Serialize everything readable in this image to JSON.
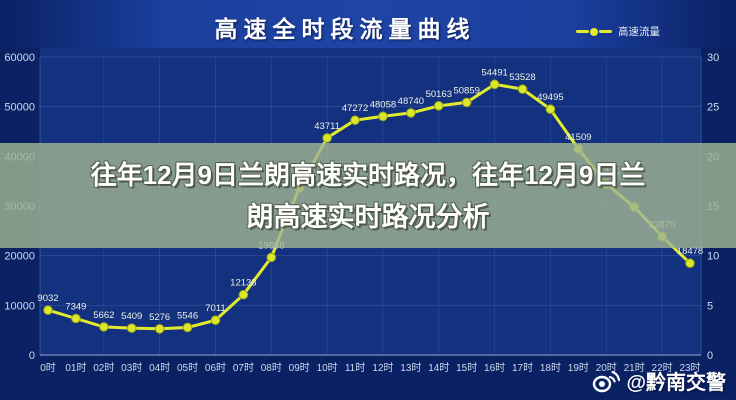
{
  "header": {
    "title": "高速全时段流量曲线"
  },
  "legend": {
    "label": "高速流量",
    "marker_color": "#e2eb2d"
  },
  "overlay": {
    "line1": "往年12月9日兰朗高速实时路况，往年12月9日兰",
    "line2": "朗高速实时路况分析"
  },
  "watermark": {
    "handle": "@黔南交警",
    "icon": "weibo-icon"
  },
  "chart_data": {
    "type": "line",
    "title": "高速全时段流量曲线",
    "legend_entries": [
      "高速流量"
    ],
    "legend_position": "top-right",
    "grid": true,
    "categories": [
      "0时",
      "01时",
      "02时",
      "03时",
      "04时",
      "05时",
      "06时",
      "07时",
      "08时",
      "09时",
      "10时",
      "11时",
      "12时",
      "13时",
      "14时",
      "15时",
      "16时",
      "17时",
      "18时",
      "19时",
      "20时",
      "21时",
      "22时",
      "23时"
    ],
    "series": [
      {
        "name": "高速流量",
        "values": [
          9032,
          7349,
          5662,
          5409,
          5276,
          5546,
          7011,
          12138,
          19658,
          33600,
          43711,
          47272,
          48058,
          48740,
          50163,
          50859,
          54491,
          53528,
          49495,
          41509,
          34445,
          29800,
          23870,
          18478
        ]
      }
    ],
    "point_labels": [
      "9032",
      "7349",
      "5662",
      "5409",
      "5276",
      "5546",
      "7011",
      "12138",
      "19658",
      "",
      "43711",
      "47272",
      "48058",
      "48740",
      "50163",
      "50859",
      "54491",
      "53528",
      "49495",
      "41509",
      "34445",
      "",
      "23870",
      "18478"
    ],
    "axis_left": {
      "min": 0,
      "max": 60000,
      "step": 10000
    },
    "axis_right": {
      "min": 0,
      "max": 30,
      "step": 5
    },
    "line_color": "#e2eb2d",
    "marker_fill": "#dce72b",
    "marker_stroke": "#99a416",
    "label_color": "#eef2e2",
    "tick_color": "#cfd9ee",
    "grid_color": "#3c5ca8",
    "plot_bg": "#13317e"
  }
}
